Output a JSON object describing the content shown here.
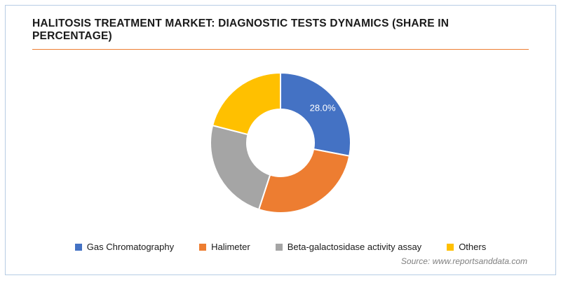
{
  "header": {
    "title": "HALITOSIS TREATMENT MARKET: DIAGNOSTIC TESTS DYNAMICS (SHARE IN PERCENTAGE)"
  },
  "chart_data": {
    "type": "pie",
    "subtype": "donut",
    "title": "HALITOSIS TREATMENT MARKET: DIAGNOSTIC TESTS DYNAMICS (SHARE IN PERCENTAGE)",
    "start_angle_deg": 0,
    "direction": "clockwise",
    "categories": [
      "Gas Chromatography",
      "Halimeter",
      "Beta-galactosidase activity assay",
      "Others"
    ],
    "values": [
      28.0,
      27.0,
      24.0,
      21.0
    ],
    "colors": [
      "#4472c4",
      "#ed7d31",
      "#a5a5a5",
      "#ffc000"
    ],
    "data_labels": [
      "28.0%",
      "",
      "",
      ""
    ],
    "inner_radius_ratio": 0.48,
    "legend_position": "bottom",
    "grid": false
  },
  "legend": {
    "items": [
      {
        "label": "Gas Chromatography",
        "color": "#4472c4"
      },
      {
        "label": "Halimeter",
        "color": "#ed7d31"
      },
      {
        "label": "Beta-galactosidase activity assay",
        "color": "#a5a5a5"
      },
      {
        "label": "Others",
        "color": "#ffc000"
      }
    ]
  },
  "footer": {
    "source": "Source: www.reportsanddata.com"
  },
  "colors": {
    "accent_line": "#ed7d31",
    "card_border": "#b7cde4",
    "title_text": "#1a1a1a",
    "source_text": "#808080",
    "slice_label_text": "#ffffff"
  }
}
